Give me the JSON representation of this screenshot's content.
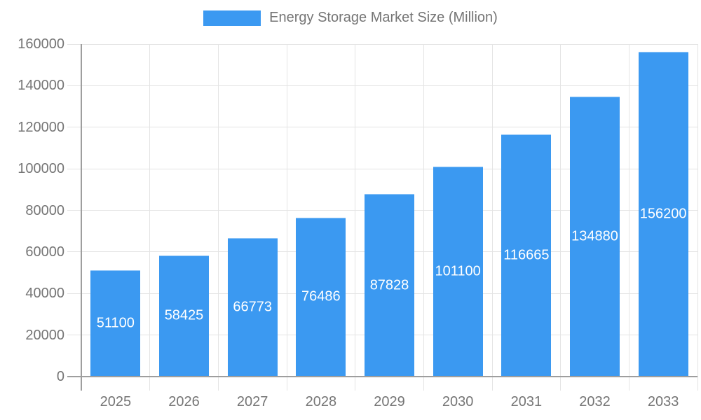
{
  "legend": {
    "label": "Energy Storage Market Size (Million)"
  },
  "colors": {
    "bar": "#3b99f1",
    "grid": "#e4e4e4",
    "axis": "#9e9e9e",
    "tick_text": "#757575",
    "value_label": "#ffffff",
    "background": "#ffffff"
  },
  "chart_data": {
    "type": "bar",
    "title": "Energy Storage Market Size (Million)",
    "series_name": "Energy Storage Market Size (Million)",
    "categories": [
      "2025",
      "2026",
      "2027",
      "2028",
      "2029",
      "2030",
      "2031",
      "2032",
      "2033"
    ],
    "values": [
      51100,
      58425,
      66773,
      76486,
      87828,
      101100,
      116665,
      134880,
      156200
    ],
    "xlabel": "",
    "ylabel": "",
    "ylim": [
      0,
      160000
    ],
    "ytick_step": 20000,
    "yticks": [
      0,
      20000,
      40000,
      60000,
      80000,
      100000,
      120000,
      140000,
      160000
    ],
    "grid": true,
    "legend_position": "top",
    "value_labels_position": "inside-center",
    "bar_color": "#3b99f1"
  }
}
